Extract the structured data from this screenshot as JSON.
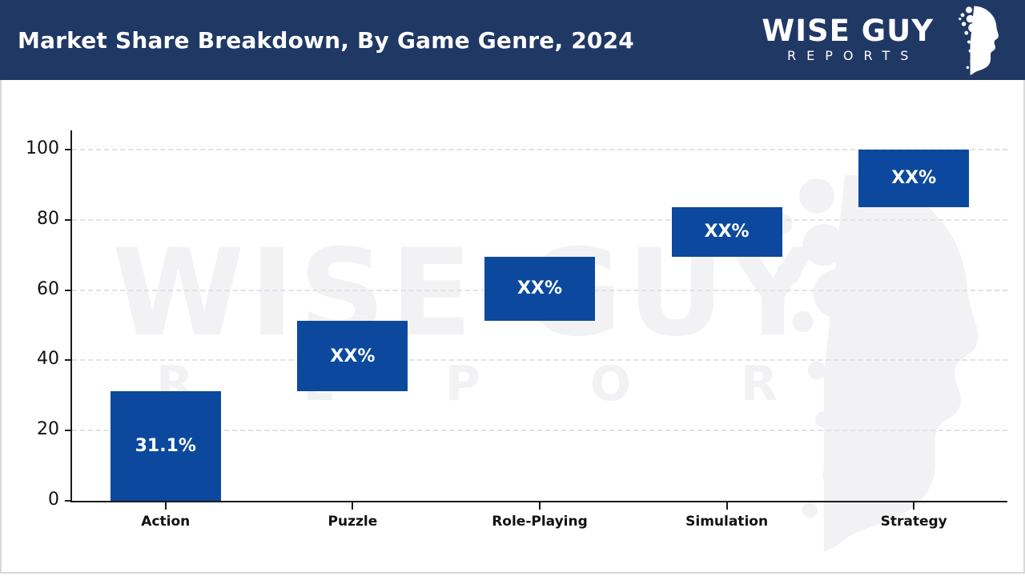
{
  "header": {
    "title": "Market Share Breakdown, By Game Genre, 2024",
    "bg_color": "#203864",
    "logo": {
      "line1": "WISE GUY",
      "line2": "REPORTS"
    }
  },
  "watermark": {
    "line1": "WISE GUY",
    "line2": "R E P O R T S"
  },
  "chart_data": {
    "type": "bar",
    "subtype": "waterfall",
    "title": "Market Share Breakdown, By Game Genre, 2024",
    "categories": [
      "Action",
      "Puzzle",
      "Role-Playing",
      "Simulation",
      "Strategy"
    ],
    "segments": [
      {
        "category": "Action",
        "start": 0,
        "end": 31.1,
        "label": "31.1%"
      },
      {
        "category": "Puzzle",
        "start": 31.1,
        "end": 51.3,
        "label": "XX%"
      },
      {
        "category": "Role-Playing",
        "start": 51.3,
        "end": 69.5,
        "label": "XX%"
      },
      {
        "category": "Simulation",
        "start": 69.5,
        "end": 83.6,
        "label": "XX%"
      },
      {
        "category": "Strategy",
        "start": 83.6,
        "end": 100,
        "label": "XX%"
      }
    ],
    "xlabel": "",
    "ylabel": "",
    "ylim": [
      0,
      105.5
    ],
    "yticks": [
      0,
      20,
      40,
      60,
      80,
      100
    ],
    "grid": "horizontal-dashed",
    "legend": "none",
    "bar_color": "#0c499e",
    "axis_color": "#1a1a1a",
    "grid_color": "#e2e2e2"
  }
}
